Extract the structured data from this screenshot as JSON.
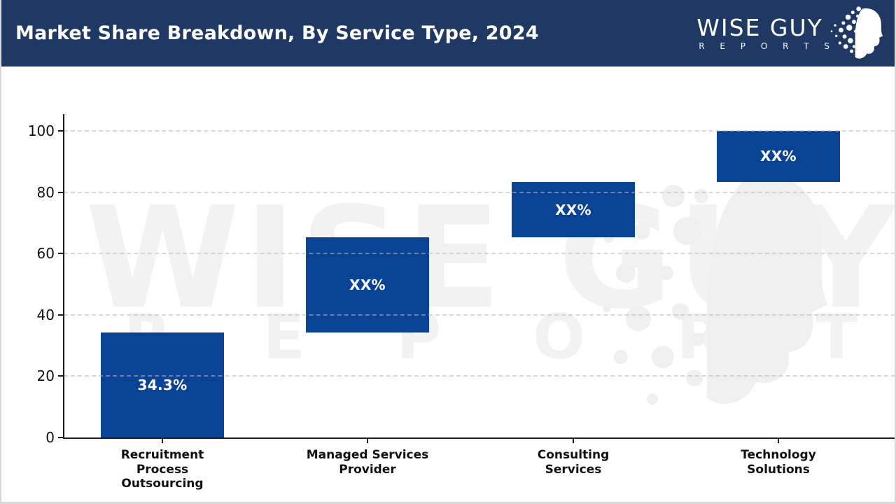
{
  "header": {
    "title": "Market Share Breakdown, By Service Type, 2024",
    "bg_color": "#1f3864",
    "logo": {
      "line1": "WISE GUY",
      "line2": "R E P O R T S"
    }
  },
  "watermark": {
    "line1": "WISE GUY",
    "line2": "R E P O R T S"
  },
  "chart_data": {
    "type": "bar",
    "subtype": "waterfall",
    "title": "Market Share Breakdown, By Service Type, 2024",
    "categories": [
      [
        "Recruitment",
        "Process",
        "Outsourcing"
      ],
      [
        "Managed Services",
        "Provider"
      ],
      [
        "Consulting",
        "Services"
      ],
      [
        "Technology",
        "Solutions"
      ]
    ],
    "bars": [
      {
        "label": "34.3%",
        "start": 0,
        "end": 34.3
      },
      {
        "label": "XX%",
        "start": 34.3,
        "end": 65.2
      },
      {
        "label": "XX%",
        "start": 65.2,
        "end": 83.4
      },
      {
        "label": "XX%",
        "start": 83.4,
        "end": 100
      }
    ],
    "yticks": [
      0,
      20,
      40,
      60,
      80,
      100
    ],
    "ylim": [
      0,
      100
    ],
    "xlabel": "",
    "ylabel": "",
    "legend": "none",
    "grid": "horizontal-dashed",
    "bar_color": "#0a4296",
    "grid_color": "#c9c9c9",
    "axis_color": "#1a1a1a",
    "watermark_color": "#f2f2f2"
  }
}
